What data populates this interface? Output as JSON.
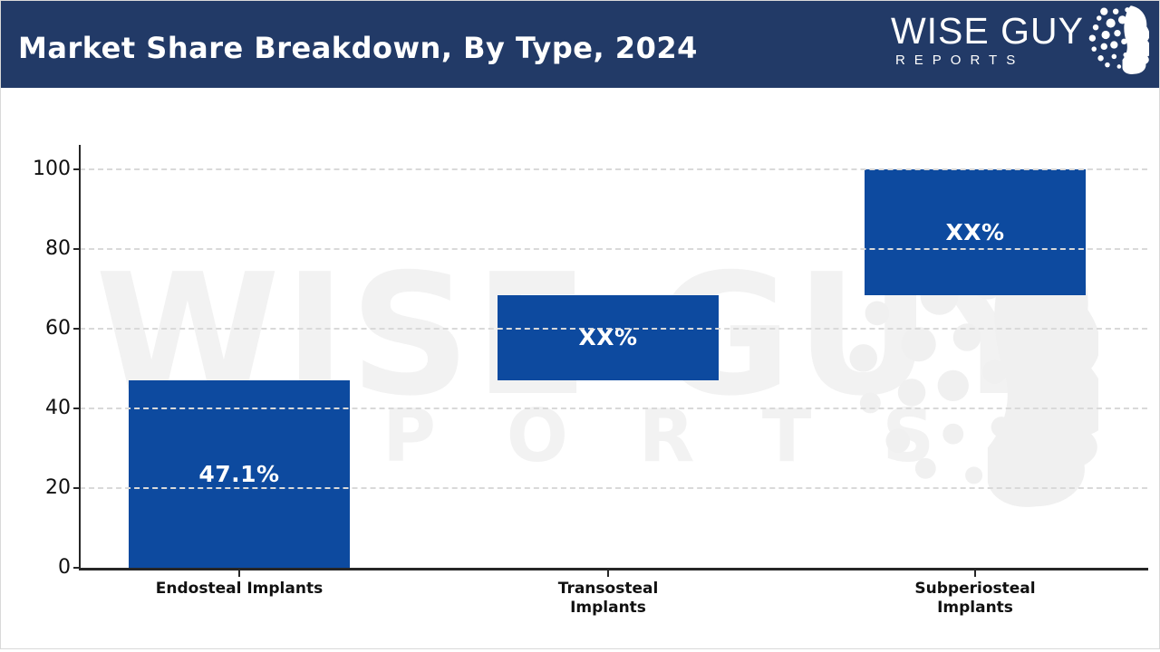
{
  "header": {
    "title": "Market Share Breakdown, By Type, 2024",
    "background_color": "#223a67",
    "logo": {
      "wordmark": "WISE GUY",
      "subtext": "REPORTS"
    }
  },
  "watermark": {
    "wordmark": "WISE GUY",
    "subtext": "REPORTS"
  },
  "chart_data": {
    "type": "bar",
    "subtype": "stepped-waterfall",
    "title": "Market Share Breakdown, By Type, 2024",
    "categories": [
      "Endosteal Implants",
      "Transosteal\nImplants",
      "Subperiosteal\nImplants"
    ],
    "bars": [
      {
        "category": "Endosteal Implants",
        "start": 0,
        "end": 47.1,
        "label": "47.1%"
      },
      {
        "category": "Transosteal\nImplants",
        "start": 47.1,
        "end": 68.5,
        "label": "XX%"
      },
      {
        "category": "Subperiosteal\nImplants",
        "start": 68.5,
        "end": 100,
        "label": "XX%"
      }
    ],
    "xlabel": "",
    "ylabel": "",
    "ylim": [
      0,
      100
    ],
    "yticks": [
      0,
      20,
      40,
      60,
      80,
      100
    ],
    "grid": "horizontal-dashed",
    "legend": "none",
    "bar_color": "#0d4a9f",
    "value_label_color": "#ffffff",
    "grid_color": "#d9d9d9",
    "axis_color": "#262626"
  }
}
